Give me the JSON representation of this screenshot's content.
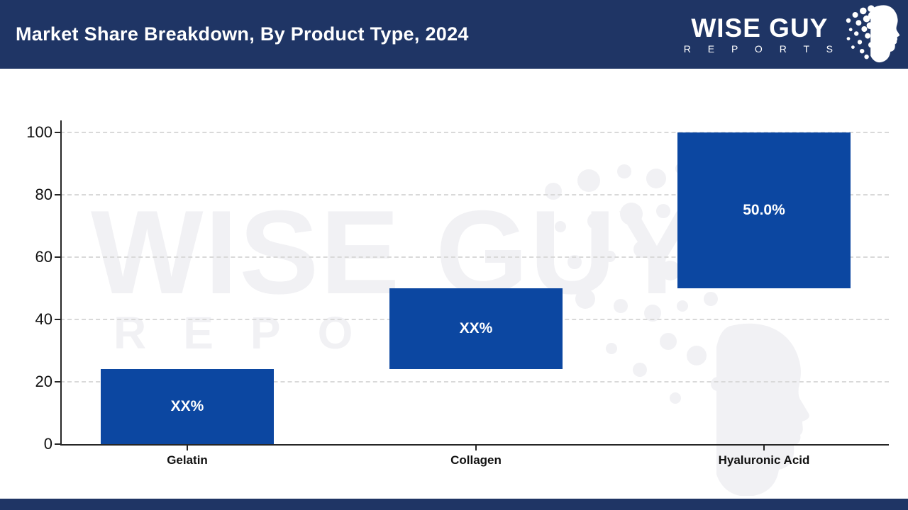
{
  "header": {
    "title": "Market Share Breakdown, By Product Type, 2024",
    "bg_color": "#1f3565",
    "logo": {
      "line1": "WISE GUY",
      "line2": "R E P O R T S"
    }
  },
  "watermark": {
    "line1": "WISE GUY",
    "line2": "REPORTS"
  },
  "footer": {
    "bg_color": "#1f3565"
  },
  "chart_data": {
    "type": "bar",
    "subtype": "cumulative-waterfall",
    "title": "Market Share Breakdown, By Product Type, 2024",
    "xlabel": "",
    "ylabel": "",
    "categories": [
      "Gelatin",
      "Collagen",
      "Hyaluronic Acid"
    ],
    "segments": [
      {
        "category": "Gelatin",
        "start": 0,
        "end": 24,
        "value_label": "XX%"
      },
      {
        "category": "Collagen",
        "start": 24,
        "end": 50,
        "value_label": "XX%"
      },
      {
        "category": "Hyaluronic Acid",
        "start": 50,
        "end": 100,
        "value_label": "50.0%"
      }
    ],
    "ylim": [
      0,
      100
    ],
    "yticks": [
      0,
      20,
      40,
      60,
      80,
      100
    ],
    "bar_color": "#0c47a1",
    "grid": "horizontal-dashed",
    "gridline_color": "#d9d9d9",
    "legend": "none"
  }
}
